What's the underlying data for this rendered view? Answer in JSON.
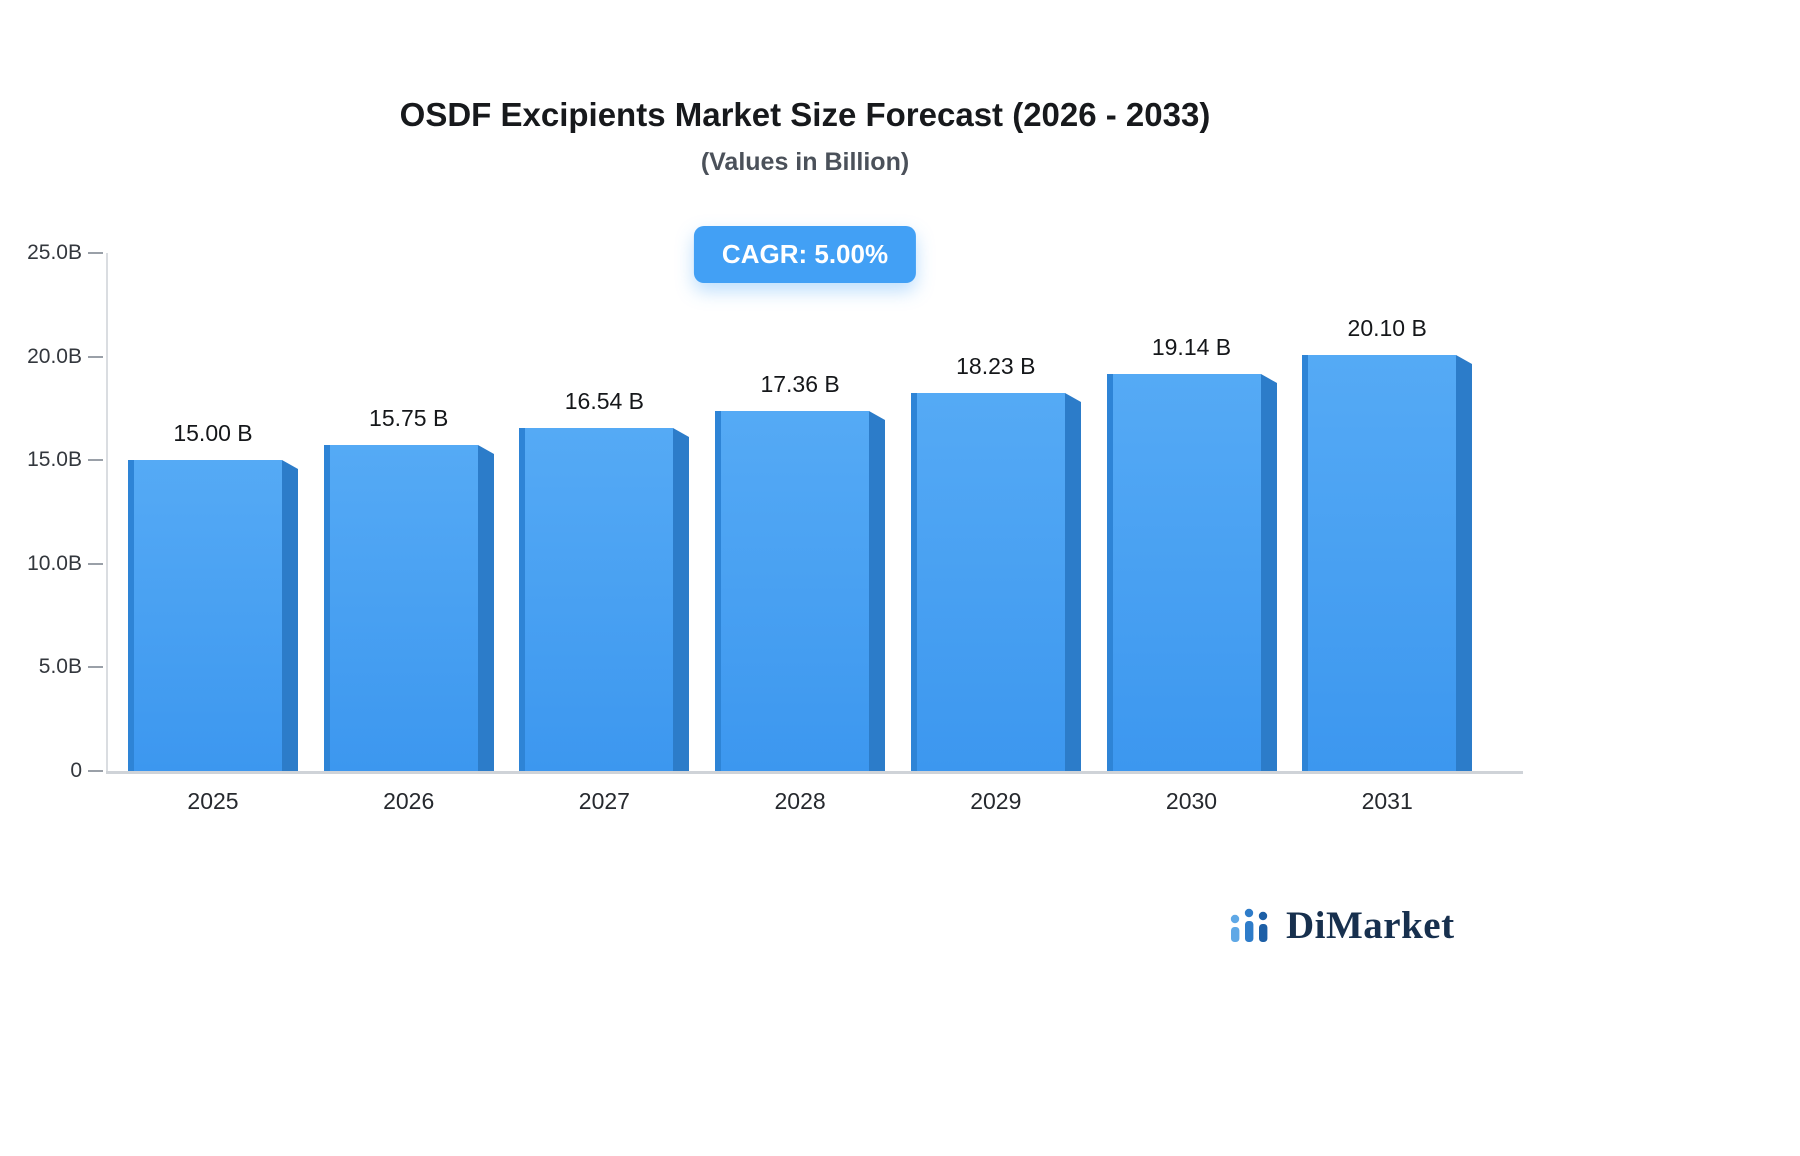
{
  "header": {
    "cagr_badge": "CAGR: 5.00%"
  },
  "logo": {
    "text": "DiMarket",
    "icon": "bar-chart-dots-icon"
  },
  "colors": {
    "bar_top": "#55AAF5",
    "bar_bottom": "#3C97EF",
    "bar_side": "#2C7CC9",
    "bar_left_edge": "#2E84D6",
    "badge": "#42A0F5",
    "logo_navy": "#17304E"
  },
  "chart_data": {
    "type": "bar",
    "title": "OSDF Excipients Market Size Forecast (2026 - 2033)",
    "subtitle": "(Values in Billion)",
    "categories": [
      "2025",
      "2026",
      "2027",
      "2028",
      "2029",
      "2030",
      "2031"
    ],
    "values": [
      15.0,
      15.75,
      16.54,
      17.36,
      18.23,
      19.14,
      20.1
    ],
    "value_labels": [
      "15.00 B",
      "15.75 B",
      "16.54 B",
      "17.36 B",
      "18.23 B",
      "19.14 B",
      "20.10 B"
    ],
    "xlabel": "",
    "ylabel": "",
    "ylim": [
      0,
      25
    ],
    "yticks": [
      {
        "value": 0,
        "label": "0"
      },
      {
        "value": 5,
        "label": "5.0B"
      },
      {
        "value": 10,
        "label": "10.0B"
      },
      {
        "value": 15,
        "label": "15.0B"
      },
      {
        "value": 20,
        "label": "20.0B"
      },
      {
        "value": 25,
        "label": "25.0B"
      }
    ],
    "grid": false,
    "legend": false
  }
}
